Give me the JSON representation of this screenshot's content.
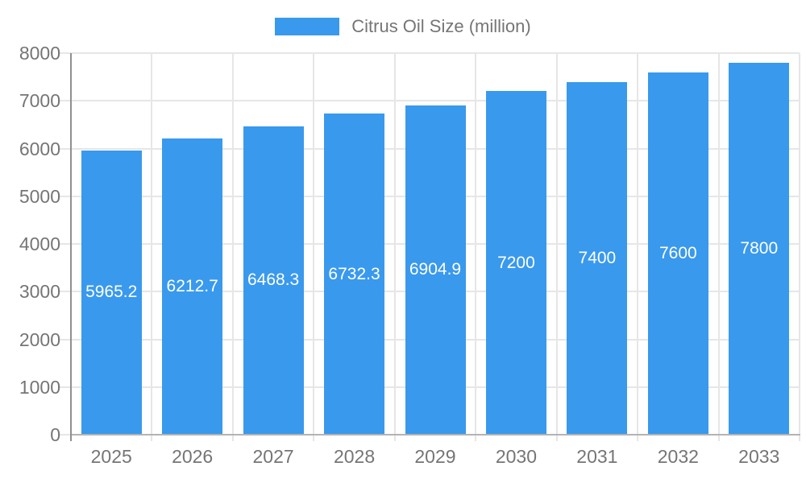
{
  "chart_data": {
    "type": "bar",
    "title": "",
    "legend": {
      "label": "Citrus Oil Size (million)",
      "position": "top"
    },
    "categories": [
      "2025",
      "2026",
      "2027",
      "2028",
      "2029",
      "2030",
      "2031",
      "2032",
      "2033"
    ],
    "series": [
      {
        "name": "Citrus Oil Size (million)",
        "values": [
          5965.2,
          6212.7,
          6468.3,
          6732.3,
          6904.9,
          7200,
          7400,
          7600,
          7800
        ]
      }
    ],
    "value_labels": [
      "5965.2",
      "6212.7",
      "6468.3",
      "6732.3",
      "6904.9",
      "7200",
      "7400",
      "7600",
      "7800"
    ],
    "xlabel": "",
    "ylabel": "",
    "ylim": [
      0,
      8000
    ],
    "yticks": [
      0,
      1000,
      2000,
      3000,
      4000,
      5000,
      6000,
      7000,
      8000
    ],
    "grid": true,
    "colors": {
      "bar": "#3999ed",
      "grid": "#e6e6e6",
      "axis_line": "#8f8f8f",
      "baseline": "#b3b3b3",
      "text": "#757575",
      "value_label": "#ffffff",
      "background": "#ffffff"
    }
  }
}
